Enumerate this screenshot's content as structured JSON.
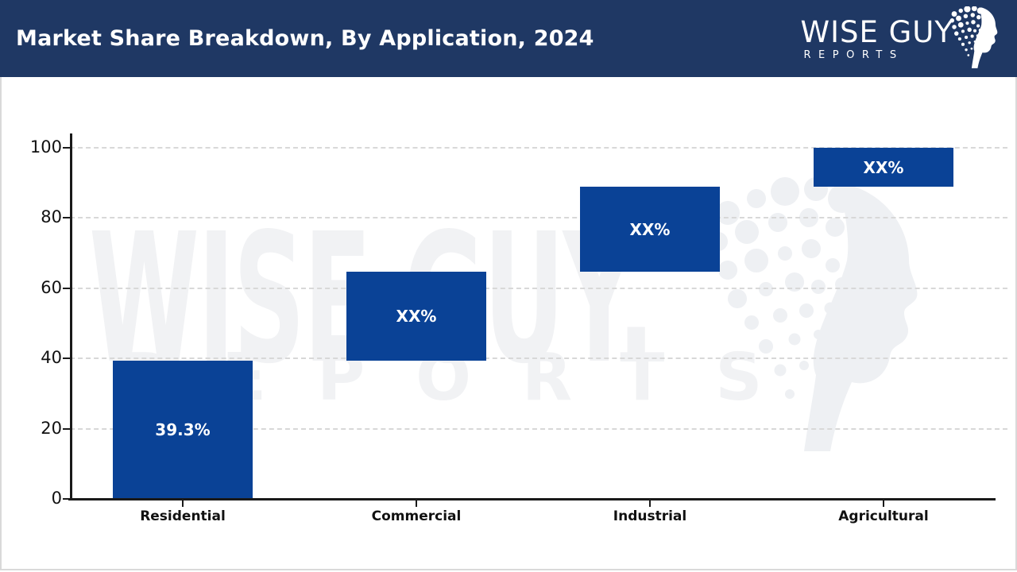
{
  "header": {
    "title": "Market Share Breakdown, By Application, 2024",
    "logo": {
      "line1": "WISE GUY",
      "line2": "REPORTS"
    }
  },
  "watermark": {
    "line1": "WISE GUY.",
    "line2": "REPORTS"
  },
  "colors": {
    "header_bg": "#1f3864",
    "title_text": "#ffffff",
    "bar_fill": "#0a4296",
    "bar_label": "#ffffff",
    "gridline": "#d8d8d8",
    "axis": "#1a1a1a",
    "watermark": "#f1f2f4"
  },
  "chart_data": {
    "type": "bar",
    "subtype": "floating-waterfall",
    "title": "Market Share Breakdown, By Application, 2024",
    "categories": [
      "Residential",
      "Commercial",
      "Industrial",
      "Agricultural"
    ],
    "series": [
      {
        "name": "Market Share (%)",
        "segments": [
          {
            "category": "Residential",
            "start": 0,
            "end": 39.3,
            "label": "39.3%"
          },
          {
            "category": "Commercial",
            "start": 39.3,
            "end": 64.6,
            "label": "XX%"
          },
          {
            "category": "Industrial",
            "start": 64.6,
            "end": 88.9,
            "label": "XX%"
          },
          {
            "category": "Agricultural",
            "start": 88.9,
            "end": 100,
            "label": "XX%"
          }
        ]
      }
    ],
    "xlabel": "",
    "ylabel": "",
    "ylim": [
      0,
      100
    ],
    "yticks": [
      0,
      20,
      40,
      60,
      80,
      100
    ],
    "grid": {
      "horizontal": true,
      "style": "dashed"
    },
    "legend": "none",
    "bar_color": "#0a4296",
    "bar_label_color": "#ffffff"
  }
}
